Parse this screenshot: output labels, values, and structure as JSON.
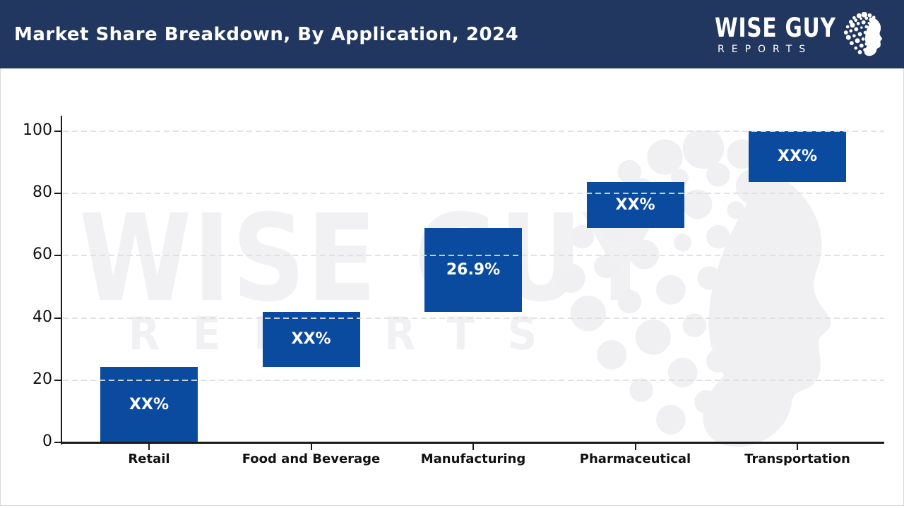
{
  "header": {
    "title": "Market Share Breakdown, By Application, 2024",
    "logo": {
      "line1": "WISE GUY",
      "line2": "REPORTS"
    }
  },
  "watermark": {
    "line1": "WISE GUY",
    "line2": "REPORTS"
  },
  "colors": {
    "header_bg": "#21375f",
    "bar": "#0a4a9f",
    "bar_label": "#ffffff",
    "axis": "#1a1a1a",
    "grid": "#dfdfdf",
    "tick_label": "#111111",
    "watermark": "#f0f0f2"
  },
  "chart_data": {
    "type": "bar",
    "subtype": "stacked-waterfall",
    "title": "Market Share Breakdown, By Application, 2024",
    "categories": [
      "Retail",
      "Food and Beverage",
      "Manufacturing",
      "Pharmaceutical",
      "Transportation"
    ],
    "series": [
      {
        "name": "Market share (%)",
        "segments": [
          {
            "category": "Retail",
            "start": 0,
            "end": 24.3,
            "value_label": "XX%"
          },
          {
            "category": "Food and Beverage",
            "start": 24.3,
            "end": 42.0,
            "value_label": "XX%"
          },
          {
            "category": "Manufacturing",
            "start": 42.0,
            "end": 68.9,
            "value_label": "26.9%",
            "value": 26.9
          },
          {
            "category": "Pharmaceutical",
            "start": 68.9,
            "end": 83.7,
            "value_label": "XX%"
          },
          {
            "category": "Transportation",
            "start": 83.7,
            "end": 100,
            "value_label": "XX%"
          }
        ]
      }
    ],
    "xlabel": "",
    "ylabel": "",
    "yticks": [
      0,
      20,
      40,
      60,
      80,
      100
    ],
    "ylim": [
      0,
      105
    ],
    "grid": "horizontal-dashed",
    "legend": "none"
  }
}
